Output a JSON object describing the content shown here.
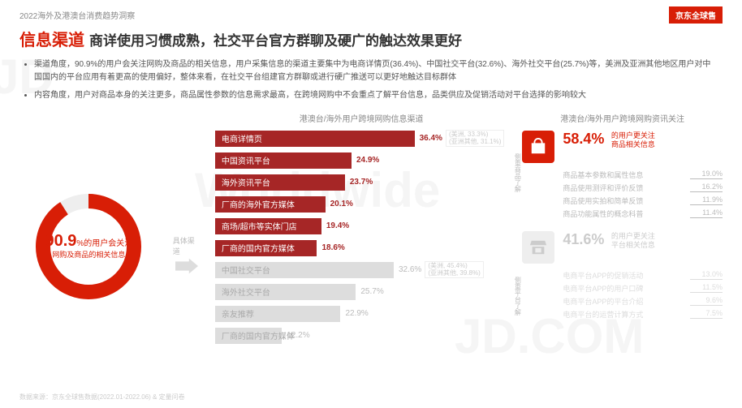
{
  "header": {
    "breadcrumb": "2022海外及港澳台消费趋势洞察",
    "logo": "京东全球售",
    "title_red": "信息渠道",
    "title_rest": "商详使用习惯成熟，社交平台官方群聊及硬广的触达效果更好"
  },
  "bullets": [
    "渠道角度，90.9%的用户会关注网购及商品的相关信息，用户采集信息的渠道主要集中为电商详情页(36.4%)、中国社交平台(32.6%)、海外社交平台(25.7%)等，美洲及亚洲其他地区用户对中国国内的平台应用有着更高的使用偏好，整体来看，在社交平台组建官方群聊或进行硬广推送可以更好地触达目标群体",
    "内容角度，用户对商品本身的关注更多，商品属性参数的信息需求最高，在跨境网购中不会重点了解平台信息，品类供应及促销活动对平台选择的影响较大"
  ],
  "left": {
    "pct": "90.9",
    "pct_suffix": "%的用户会关注",
    "line2": "网购及商品的相关信息",
    "donut_value": 90.9,
    "donut_fill": "#d81e06",
    "donut_track": "#eeeeee",
    "arrow_label": "具体渠道"
  },
  "middle": {
    "title": "港澳台/海外用户跨境网购信息渠道",
    "max": 40,
    "bars_red": [
      {
        "label": "电商详情页",
        "value": 36.4,
        "note": "(美洲, 33.3%)\n(亚洲其他, 31.1%)"
      },
      {
        "label": "中国资讯平台",
        "value": 24.9
      },
      {
        "label": "海外资讯平台",
        "value": 23.7
      },
      {
        "label": "厂商的海外官方媒体",
        "value": 20.1
      },
      {
        "label": "商场/超市等实体门店",
        "value": 19.4
      },
      {
        "label": "厂商的国内官方媒体",
        "value": 18.6
      }
    ],
    "bars_grey": [
      {
        "label": "中国社交平台",
        "value": 32.6,
        "note": "(美洲, 45.4%)\n(亚洲其他, 39.8%)"
      },
      {
        "label": "海外社交平台",
        "value": 25.7
      },
      {
        "label": "亲友推荐",
        "value": 22.9
      },
      {
        "label": "厂商的国内官方媒体",
        "value": 12.2
      }
    ],
    "side_red": "侧重商品了解",
    "side_grey": "侧重平台了解"
  },
  "right": {
    "title": "港澳台/海外用户跨境网购资讯关注",
    "red_card": {
      "pct": "58.4%",
      "desc": "的用户更关注\n商品相关信息"
    },
    "red_list": [
      {
        "lbl": "商品基本参数和属性信息",
        "val": "19.0%"
      },
      {
        "lbl": "商品使用测评和评价反馈",
        "val": "16.2%"
      },
      {
        "lbl": "商品使用实拍和简单反馈",
        "val": "11.9%"
      },
      {
        "lbl": "商品功能属性的概念科普",
        "val": "11.4%"
      }
    ],
    "grey_card": {
      "pct": "41.6%",
      "desc": "的用户更关注\n平台相关信息"
    },
    "grey_list": [
      {
        "lbl": "电商平台APP的促销活动",
        "val": "13.0%"
      },
      {
        "lbl": "电商平台APP的用户口碑",
        "val": "11.5%"
      },
      {
        "lbl": "电商平台APP的平台介绍",
        "val": "9.6%"
      },
      {
        "lbl": "电商平台的运营计算方式",
        "val": "7.5%"
      }
    ]
  },
  "footer": "数据来源：京东全球售数据(2022.01-2022.06) & 定量问卷"
}
